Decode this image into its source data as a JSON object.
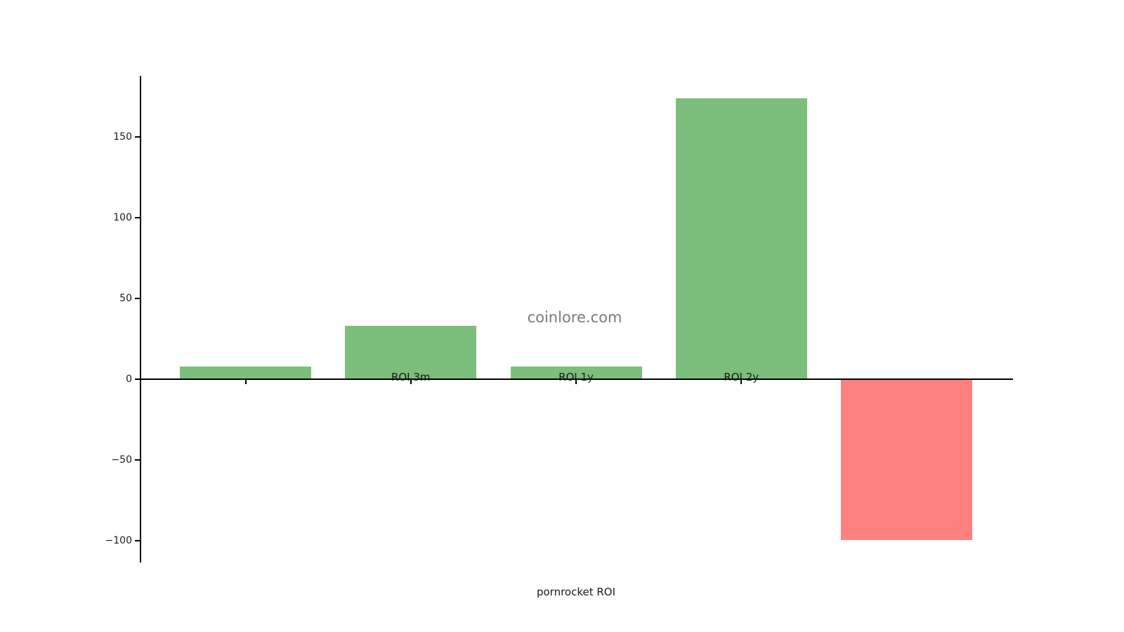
{
  "watermark": "coinlore.com",
  "chart_data": {
    "type": "bar",
    "title": "",
    "xlabel": "pornrocket ROI",
    "ylabel": "",
    "categories": [
      "",
      "ROI 3m",
      "ROI 1y",
      "ROI 2y",
      ""
    ],
    "values": [
      8,
      33,
      8,
      174,
      -99
    ],
    "ylim": [
      -113.75,
      188.75
    ],
    "yticks": [
      150,
      100,
      50,
      0,
      -50,
      -100
    ],
    "ytick_labels": [
      "150",
      "100",
      "50",
      "0",
      "−50",
      "−100"
    ],
    "grid": false,
    "legend": "none",
    "colors": {
      "positive_bar": "#7CBE7C",
      "negative_bar": "#FD8080",
      "axis": "#000000",
      "tick_label": "#1a1a1a",
      "watermark": "#7a7a7a",
      "background": "#ffffff"
    }
  }
}
